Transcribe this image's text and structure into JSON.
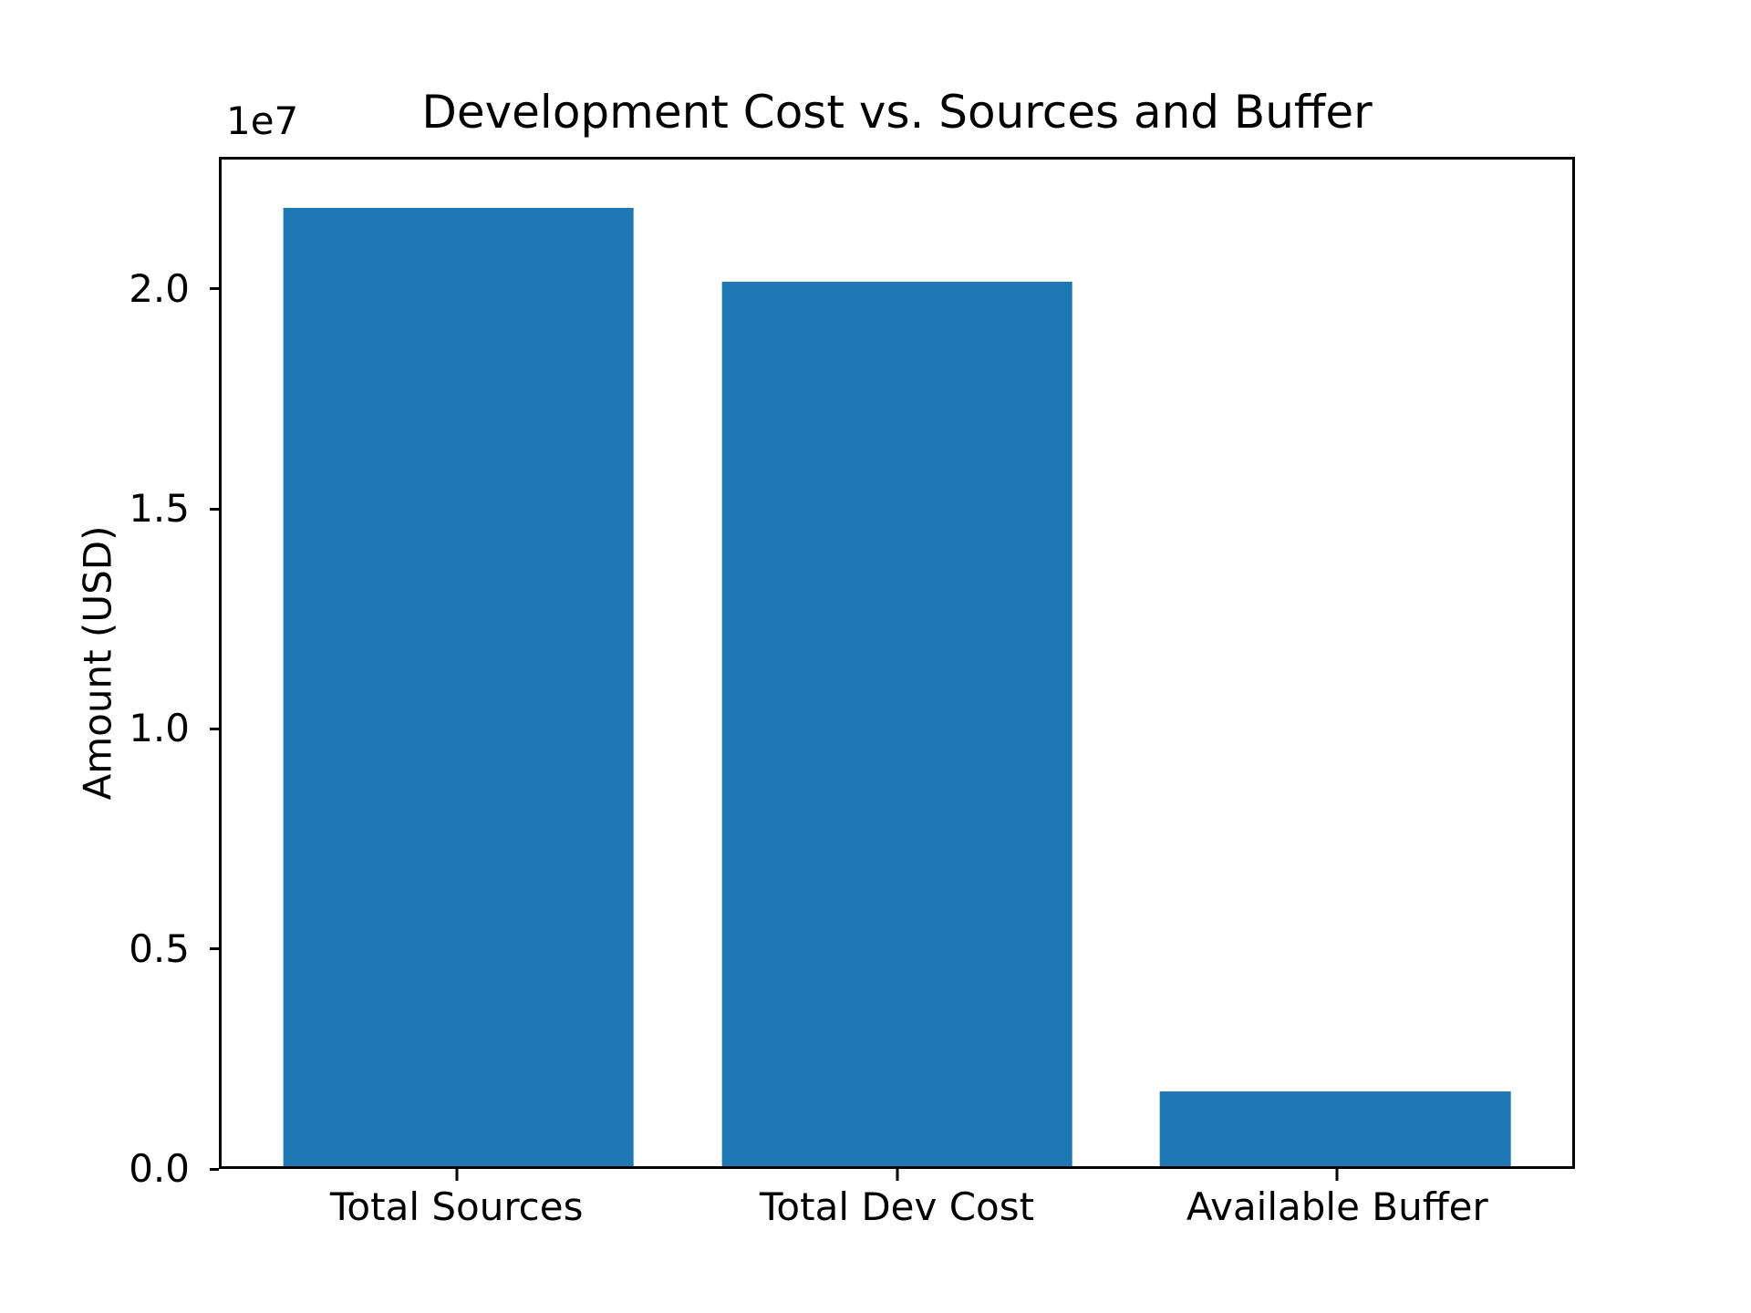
{
  "chart_data": {
    "type": "bar",
    "title": "Development Cost vs. Sources and Buffer",
    "xlabel": "",
    "ylabel": "Amount (USD)",
    "y_offset_text": "1e7",
    "categories": [
      "Total Sources",
      "Total Dev Cost",
      "Available Buffer"
    ],
    "values": [
      21900000,
      20200000,
      1700000
    ],
    "bar_color": "#1f77b4",
    "bar_width": 0.8,
    "xlim": [
      -0.54,
      2.54
    ],
    "ylim": [
      0,
      23000000
    ],
    "yticks": {
      "values": [
        0,
        5000000,
        10000000,
        15000000,
        20000000
      ],
      "labels": [
        "0.0",
        "0.5",
        "1.0",
        "1.5",
        "2.0"
      ]
    },
    "grid": false,
    "legend": false
  }
}
